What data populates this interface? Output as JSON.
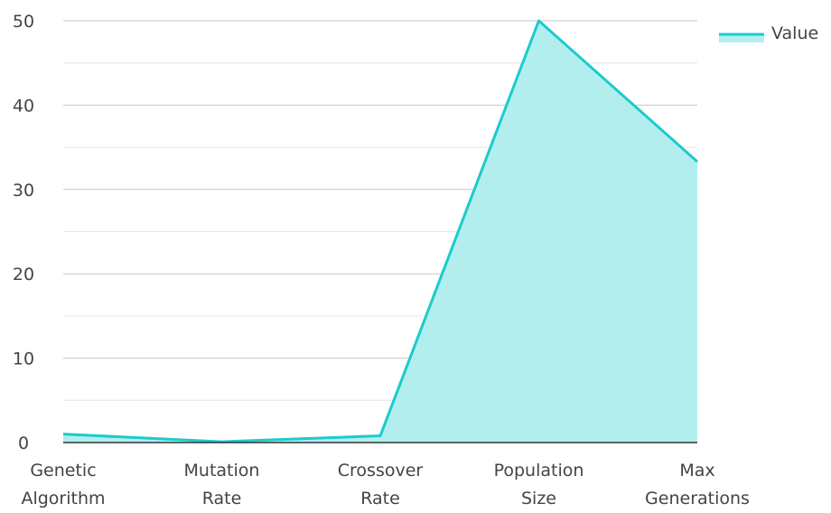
{
  "chart_data": {
    "type": "area",
    "categories": [
      [
        "Genetic",
        "Algorithm"
      ],
      [
        "Mutation",
        "Rate"
      ],
      [
        "Crossover",
        "Rate"
      ],
      [
        "Population",
        "Size"
      ],
      [
        "Max",
        "Generations"
      ]
    ],
    "series": [
      {
        "name": "Value",
        "values": [
          1,
          0.1,
          0.8,
          50,
          33.3
        ]
      }
    ],
    "ylim": [
      0,
      50
    ],
    "yticks": [
      0,
      10,
      20,
      30,
      40,
      50
    ],
    "grid": true,
    "legend": "top-right",
    "colors": {
      "line": "#1ccbcb",
      "fill": "#b2eeee",
      "grid_major": "#c8c8c8",
      "grid_minor": "#e6e6e6",
      "axis": "#333333",
      "text": "#444444"
    }
  }
}
